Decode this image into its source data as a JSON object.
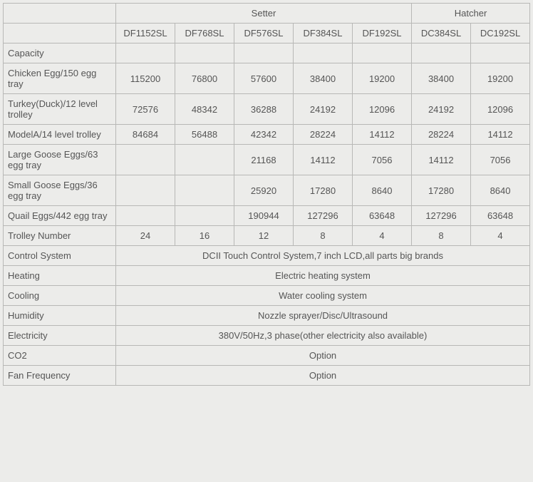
{
  "header": {
    "setter": "Setter",
    "hatcher": "Hatcher"
  },
  "models": {
    "setter": [
      "DF1152SL",
      "DF768SL",
      "DF576SL",
      "DF384SL",
      "DF192SL"
    ],
    "hatcher": [
      "DC384SL",
      "DC192SL"
    ]
  },
  "rows": [
    {
      "label": "Capacity",
      "vals": [
        "",
        "",
        "",
        "",
        "",
        "",
        ""
      ]
    },
    {
      "label": "Chicken Egg/150 egg tray",
      "vals": [
        "115200",
        "76800",
        "57600",
        "38400",
        "19200",
        "38400",
        "19200"
      ]
    },
    {
      "label": "Turkey(Duck)/12 level trolley",
      "vals": [
        "72576",
        "48342",
        "36288",
        "24192",
        "12096",
        "24192",
        "12096"
      ]
    },
    {
      "label": "ModelA/14 level trolley",
      "vals": [
        "84684",
        "56488",
        "42342",
        "28224",
        "14112",
        "28224",
        "14112"
      ]
    },
    {
      "label": "Large Goose Eggs/63 egg tray",
      "vals": [
        "",
        "",
        "21168",
        "14112",
        "7056",
        "14112",
        "7056"
      ]
    },
    {
      "label": "Small Goose Eggs/36 egg tray",
      "vals": [
        "",
        "",
        "25920",
        "17280",
        "8640",
        "17280",
        "8640"
      ]
    },
    {
      "label": "Quail Eggs/442 egg tray",
      "vals": [
        "",
        "",
        "190944",
        "127296",
        "63648",
        "127296",
        "63648"
      ]
    },
    {
      "label": "Trolley Number",
      "vals": [
        "24",
        "16",
        "12",
        "8",
        "4",
        "8",
        "4"
      ]
    }
  ],
  "spanRows": [
    {
      "label": "Control System",
      "val": "DCII Touch Control System,7 inch LCD,all parts big brands"
    },
    {
      "label": "Heating",
      "val": "Electric heating system"
    },
    {
      "label": "Cooling",
      "val": "Water cooling system"
    },
    {
      "label": "Humidity",
      "val": "Nozzle sprayer/Disc/Ultrasound"
    },
    {
      "label": "Electricity",
      "val": "380V/50Hz,3 phase(other electricity also available)"
    },
    {
      "label": "CO2",
      "val": "Option"
    },
    {
      "label": "Fan Frequency",
      "val": "Option"
    }
  ],
  "style": {
    "background_color": "#ececea",
    "border_color": "#b8b8b6",
    "text_color": "#555555",
    "font_size": 13,
    "font_family": "Arial"
  }
}
